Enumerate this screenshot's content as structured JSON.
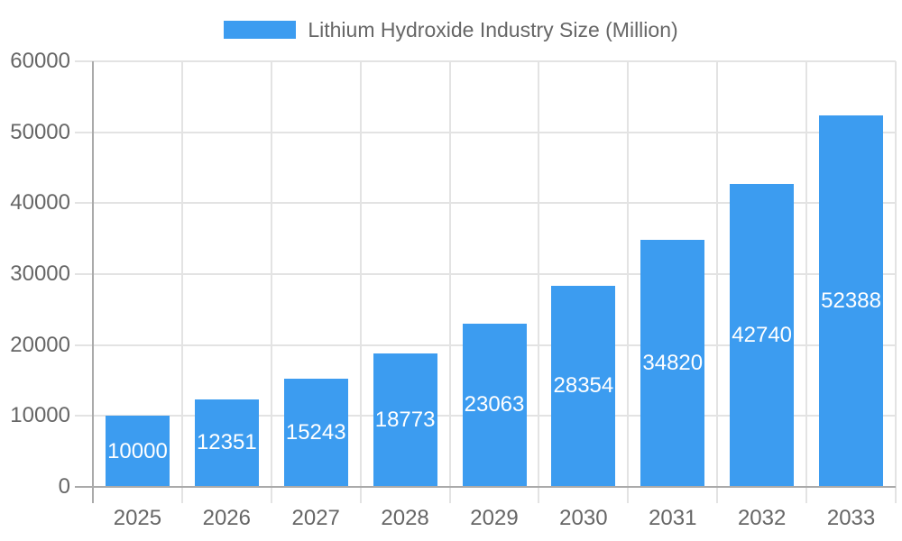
{
  "chart_data": {
    "type": "bar",
    "title": "Lithium Hydroxide Industry Size (Million)",
    "categories": [
      "2025",
      "2026",
      "2027",
      "2028",
      "2029",
      "2030",
      "2031",
      "2032",
      "2033"
    ],
    "values": [
      10000,
      12351,
      15243,
      18773,
      23063,
      28354,
      34820,
      42740,
      52388
    ],
    "xlabel": "",
    "ylabel": "",
    "ylim": [
      0,
      60000
    ],
    "ytick_step": 10000,
    "ytick_labels": [
      "0",
      "10000",
      "20000",
      "30000",
      "40000",
      "50000",
      "60000"
    ],
    "grid": true,
    "legend_position": "top",
    "bar_value_labels": "inside-centered",
    "colors": {
      "bar": "#3c9cf0",
      "grid": "#e3e3e3",
      "axis": "#aaaaaa",
      "text": "#666666",
      "bar_label": "#ffffff",
      "background": "#ffffff"
    }
  }
}
